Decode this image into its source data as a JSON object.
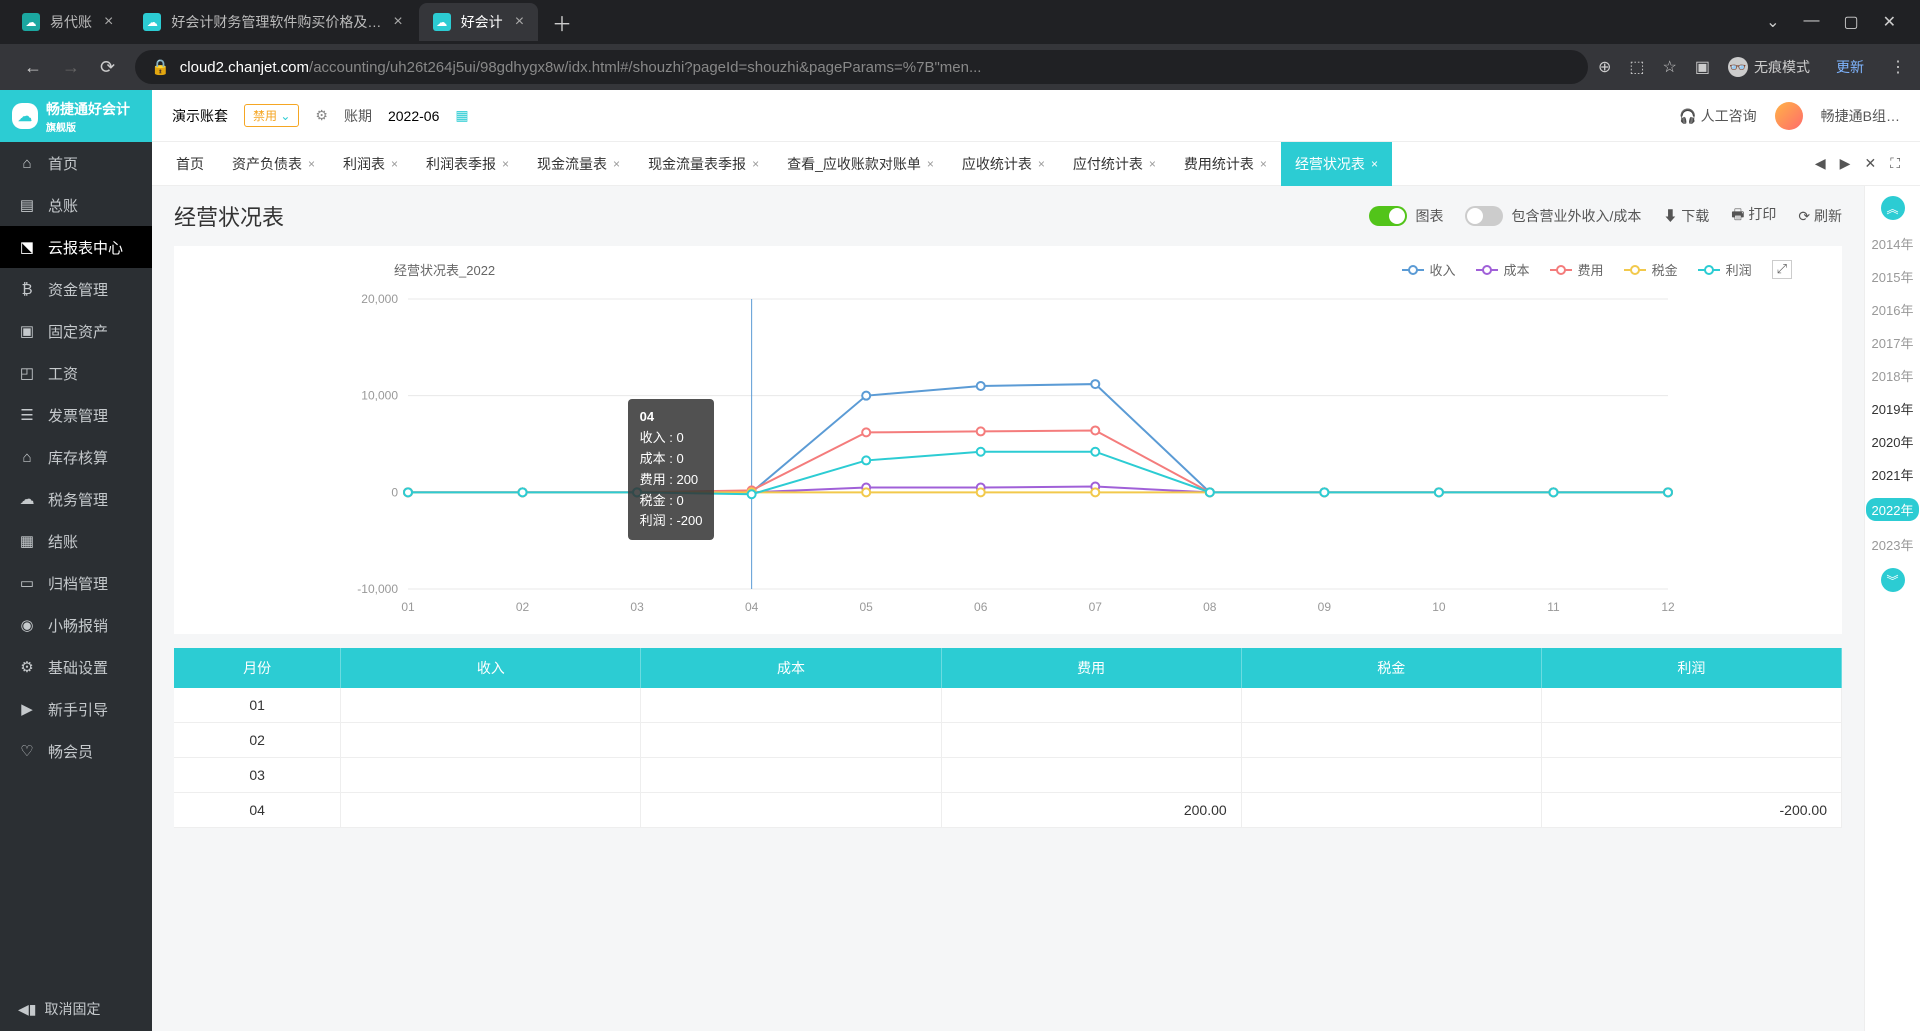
{
  "browser": {
    "tabs": [
      {
        "title": "易代账",
        "favicon_bg": "#1ba7a0"
      },
      {
        "title": "好会计财务管理软件购买价格及…",
        "favicon_bg": "#2cccd3"
      },
      {
        "title": "好会计",
        "favicon_bg": "#2cccd3",
        "active": true
      }
    ],
    "url_host": "cloud2.chanjet.com",
    "url_path": "/accounting/uh26t264j5ui/98gdhygx8w/idx.html#/shouzhi?pageId=shouzhi&pageParams=%7B\"men...",
    "incognito_label": "无痕模式",
    "update_label": "更新"
  },
  "sidebar": {
    "logo_text": "畅捷通好会计",
    "logo_sub": "旗舰版",
    "items": [
      {
        "icon": "⌂",
        "label": "首页"
      },
      {
        "icon": "▤",
        "label": "总账"
      },
      {
        "icon": "⬔",
        "label": "云报表中心",
        "active": true
      },
      {
        "icon": "₿",
        "label": "资金管理"
      },
      {
        "icon": "▣",
        "label": "固定资产"
      },
      {
        "icon": "◰",
        "label": "工资"
      },
      {
        "icon": "☰",
        "label": "发票管理"
      },
      {
        "icon": "⌂",
        "label": "库存核算"
      },
      {
        "icon": "☁",
        "label": "税务管理"
      },
      {
        "icon": "▦",
        "label": "结账"
      },
      {
        "icon": "▭",
        "label": "归档管理"
      },
      {
        "icon": "◉",
        "label": "小畅报销"
      },
      {
        "icon": "⚙",
        "label": "基础设置"
      },
      {
        "icon": "▶",
        "label": "新手引导"
      },
      {
        "icon": "♡",
        "label": "畅会员"
      }
    ],
    "footer": "取消固定"
  },
  "topbar": {
    "account_name": "演示账套",
    "demo_badge": "禁用",
    "period_label": "账期",
    "period_value": "2022-06",
    "consult_label": "人工咨询",
    "user_name": "畅捷通B组…"
  },
  "page_tabs": {
    "items": [
      {
        "label": "首页",
        "closable": false
      },
      {
        "label": "资产负债表",
        "closable": true
      },
      {
        "label": "利润表",
        "closable": true
      },
      {
        "label": "利润表季报",
        "closable": true
      },
      {
        "label": "现金流量表",
        "closable": true
      },
      {
        "label": "现金流量表季报",
        "closable": true
      },
      {
        "label": "查看_应收账款对账单",
        "closable": true
      },
      {
        "label": "应收统计表",
        "closable": true
      },
      {
        "label": "应付统计表",
        "closable": true
      },
      {
        "label": "费用统计表",
        "closable": true
      },
      {
        "label": "经营状况表",
        "closable": true,
        "active": true
      }
    ]
  },
  "page": {
    "title": "经营状况表",
    "toggle_chart_label": "图表",
    "toggle_extra_label": "包含营业外收入/成本",
    "download_label": "下载",
    "print_label": "打印",
    "refresh_label": "刷新"
  },
  "chart": {
    "title": "经营状况表_2022",
    "type": "line",
    "x_categories": [
      "01",
      "02",
      "03",
      "04",
      "05",
      "06",
      "07",
      "08",
      "09",
      "10",
      "11",
      "12"
    ],
    "y_ticks": [
      -10000,
      0,
      10000,
      20000
    ],
    "ylim": [
      -10000,
      20000
    ],
    "series": [
      {
        "name": "收入",
        "color": "#5b9bd5",
        "data": [
          0,
          0,
          0,
          0,
          10000,
          11000,
          11200,
          0,
          0,
          0,
          0,
          0
        ]
      },
      {
        "name": "成本",
        "color": "#a060d8",
        "data": [
          0,
          0,
          0,
          0,
          500,
          500,
          600,
          0,
          0,
          0,
          0,
          0
        ]
      },
      {
        "name": "费用",
        "color": "#f47c7c",
        "data": [
          0,
          0,
          0,
          200,
          6200,
          6300,
          6400,
          0,
          0,
          0,
          0,
          0
        ]
      },
      {
        "name": "税金",
        "color": "#f2c94c",
        "data": [
          0,
          0,
          0,
          0,
          0,
          0,
          0,
          0,
          0,
          0,
          0,
          0
        ]
      },
      {
        "name": "利润",
        "color": "#2cccd3",
        "data": [
          0,
          0,
          0,
          -200,
          3300,
          4200,
          4200,
          0,
          0,
          0,
          0,
          0
        ]
      }
    ],
    "tooltip": {
      "x_index": 3,
      "title": "04",
      "lines": [
        "收入 : 0",
        "成本 : 0",
        "费用 : 200",
        "税金 : 0",
        "利润 : -200"
      ]
    },
    "grid_color": "#e8e8e8",
    "axis_color": "#999",
    "background_color": "#ffffff"
  },
  "table": {
    "columns": [
      "月份",
      "收入",
      "成本",
      "费用",
      "税金",
      "利润"
    ],
    "col_widths_pct": [
      10,
      18,
      18,
      18,
      18,
      18
    ],
    "rows": [
      [
        "01",
        "",
        "",
        "",
        "",
        ""
      ],
      [
        "02",
        "",
        "",
        "",
        "",
        ""
      ],
      [
        "03",
        "",
        "",
        "",
        "",
        ""
      ],
      [
        "04",
        "",
        "",
        "200.00",
        "",
        "-200.00"
      ]
    ]
  },
  "year_rail": {
    "years": [
      {
        "label": "2014年"
      },
      {
        "label": "2015年"
      },
      {
        "label": "2016年"
      },
      {
        "label": "2017年"
      },
      {
        "label": "2018年"
      },
      {
        "label": "2019年",
        "avail": true
      },
      {
        "label": "2020年",
        "avail": true
      },
      {
        "label": "2021年",
        "avail": true
      },
      {
        "label": "2022年",
        "active": true
      },
      {
        "label": "2023年"
      }
    ]
  }
}
